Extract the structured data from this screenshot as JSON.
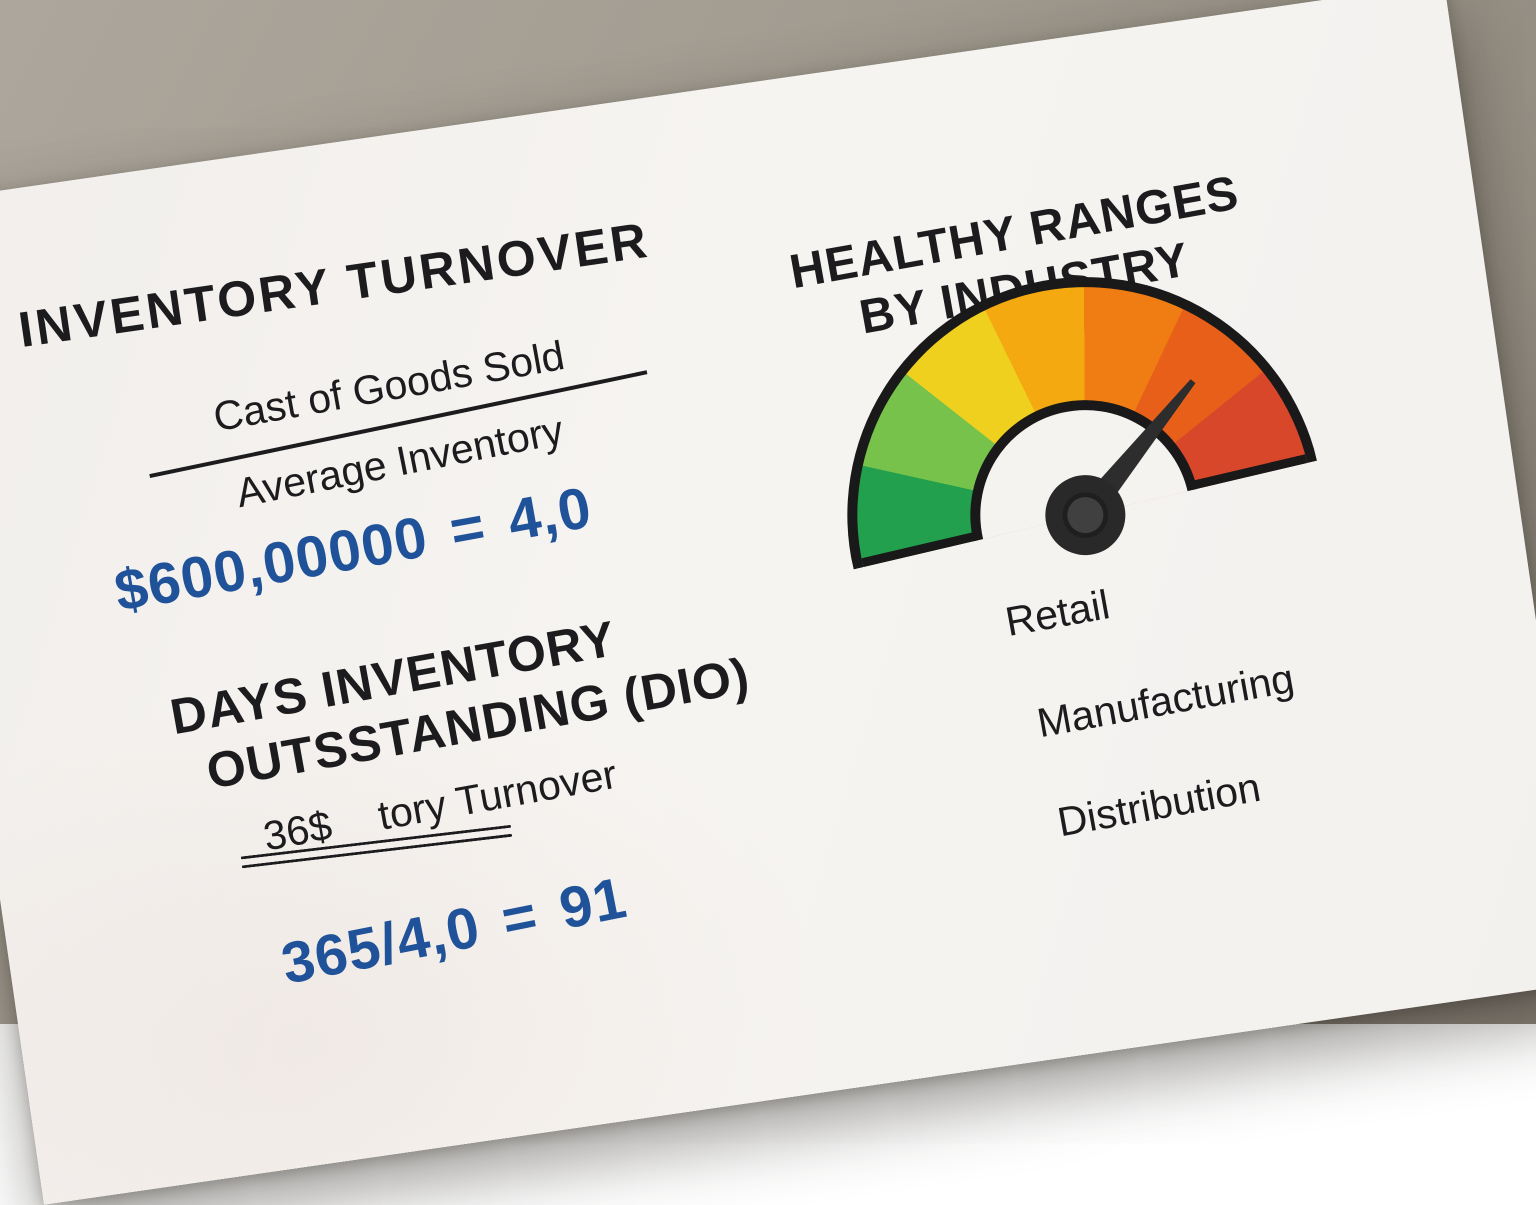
{
  "colors": {
    "backdrop": "#a29c91",
    "card": "#f5f3f0",
    "ink": "#1c1c1e",
    "accent_blue": "#1f5298"
  },
  "left_panel": {
    "title": "INVENTORY TURNOVER",
    "formula": {
      "numerator": "Cast of Goods Sold",
      "denominator": "Average Inventory"
    },
    "equation": {
      "lhs": "$600,00000",
      "equals": "=",
      "rhs": "4,0"
    },
    "dio_heading": {
      "line1": "DAYS INVENTORY",
      "line2": "OUTSSTANDING (DIO)"
    },
    "dio_formula": {
      "numerator": "36$",
      "rest": "tory Turnover"
    },
    "dio_equation": {
      "lhs": "365/4,0",
      "equals": "=",
      "rhs": "91"
    }
  },
  "right_panel": {
    "title": {
      "line1": "HEALTHY RANGES",
      "line2": "BY INDUSTRY"
    },
    "industries": [
      "Retail",
      "Manufacturing",
      "Distribution"
    ],
    "gauge": {
      "type": "gauge",
      "segment_colors": [
        "#22a04d",
        "#76c24a",
        "#efd01f",
        "#f3a90f",
        "#ef7d13",
        "#e75f19",
        "#d9472b"
      ],
      "outline_color": "#191919",
      "needle_color": "#2d2d2d",
      "hub_color": "#292929",
      "needle_angle_deg": -38
    }
  }
}
